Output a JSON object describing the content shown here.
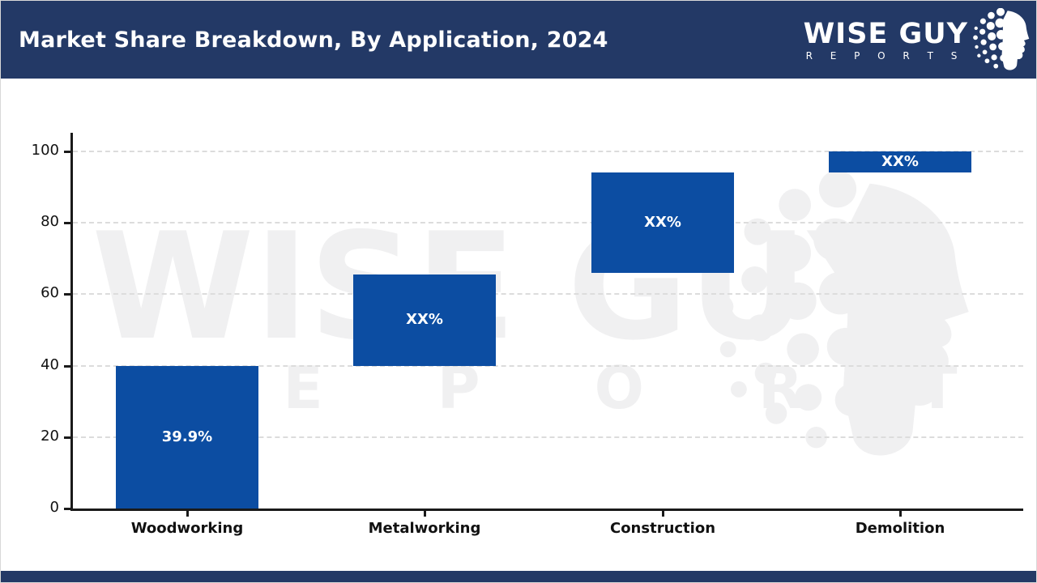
{
  "page": {
    "background": "#ffffff",
    "border_color": "#d8d8d8"
  },
  "header": {
    "bg_color": "#233966",
    "title": "Market Share Breakdown, By Application, 2024",
    "logo": {
      "wordmark": "WISE GUY",
      "subtext": "R E P O R T S"
    }
  },
  "footer": {
    "bg_color": "#233966"
  },
  "watermark": {
    "wordmark": "WISE GUY",
    "subtext": "R E P O R T S"
  },
  "chart_data": {
    "type": "bar",
    "variant": "floating-waterfall",
    "title": "Market Share Breakdown, By Application, 2024",
    "categories": [
      "Woodworking",
      "Metalworking",
      "Construction",
      "Demolition"
    ],
    "segments": [
      {
        "category": "Woodworking",
        "start": 0,
        "end": 39.9,
        "label": "39.9%"
      },
      {
        "category": "Metalworking",
        "start": 40,
        "end": 65.5,
        "label": "XX%"
      },
      {
        "category": "Construction",
        "start": 66,
        "end": 94,
        "label": "XX%"
      },
      {
        "category": "Demolition",
        "start": 94,
        "end": 100,
        "label": "XX%"
      }
    ],
    "yticks": [
      0,
      20,
      40,
      60,
      80,
      100
    ],
    "ylim": [
      0,
      104.5
    ],
    "xlabel": "",
    "ylabel": "",
    "legend": "none",
    "grid": "horizontal-dashed",
    "bar_color": "#0C4DA2",
    "bar_label_color": "#ffffff",
    "axis_color": "#1a1a1a",
    "grid_color": "#dcdcdc",
    "tick_label_color": "#111111"
  }
}
